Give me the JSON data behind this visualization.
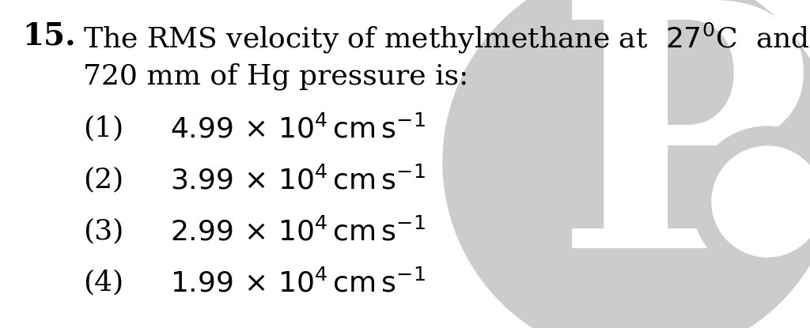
{
  "question_number": "15.",
  "question_text_line1": "The RMS velocity of methylmethane at  $27^0$C  and",
  "question_text_line2": "720 mm of Hg pressure is:",
  "options_nums": [
    "(1)",
    "(2)",
    "(3)",
    "(4)"
  ],
  "options_vals": [
    "4.99",
    "3.99",
    "2.99",
    "1.99"
  ],
  "bg_color": "#ffffff",
  "text_color": "#000000",
  "circle_color": "#cccccc",
  "p_color": "#d4d4d4",
  "font_size_qnum": 28,
  "font_size_question": 26,
  "font_size_options": 26
}
